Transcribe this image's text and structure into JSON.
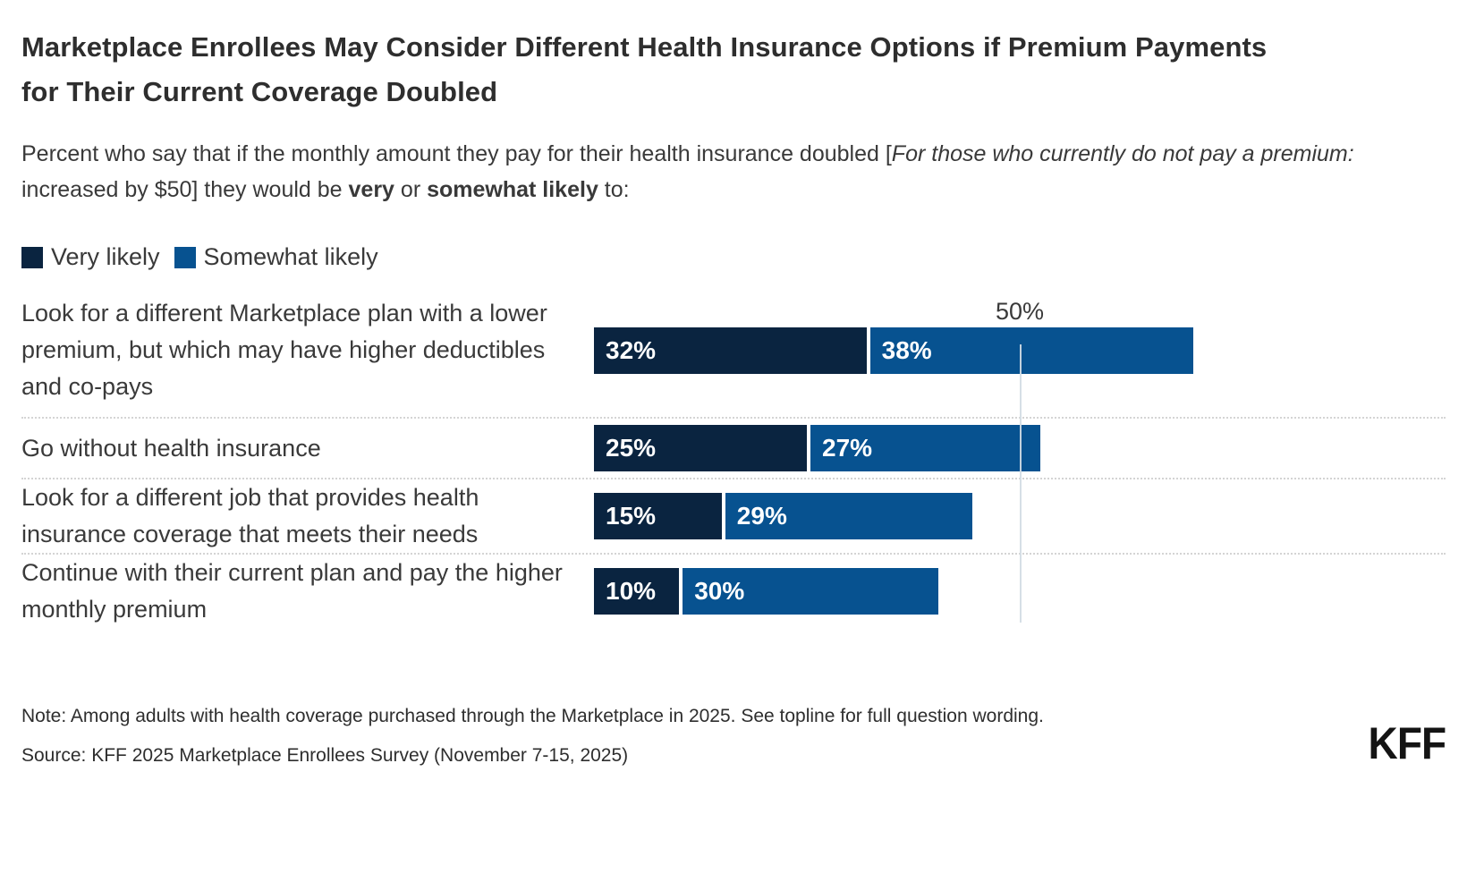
{
  "title": "Marketplace Enrollees May Consider Different Health Insurance Options if Premium Payments for Their Current Coverage Doubled",
  "subtitle": {
    "p1": "Percent who say that if the monthly amount they pay for their health insurance doubled [",
    "p2": "For those who currently do not pay a premium:",
    "p3": " increased by $50] they would be ",
    "p4": "very",
    "p5": " or ",
    "p6": "somewhat likely",
    "p7": " to:"
  },
  "chart_data": {
    "type": "bar",
    "orientation": "horizontal-stacked",
    "title": "Marketplace Enrollees May Consider Different Health Insurance Options if Premium Payments for Their Current Coverage Doubled",
    "categories": [
      "Look for a different Marketplace plan with a lower premium, but which may have higher deductibles and co-pays",
      "Go without health insurance",
      "Look for a different job that provides health insurance coverage that meets their needs",
      "Continue with their current plan and pay the higher monthly premium"
    ],
    "series": [
      {
        "name": "Very likely",
        "color": "#0a2440",
        "values": [
          32,
          25,
          15,
          10
        ]
      },
      {
        "name": "Somewhat likely",
        "color": "#075290",
        "values": [
          38,
          27,
          29,
          30
        ]
      }
    ],
    "value_suffix": "%",
    "axis": {
      "xlim": [
        0,
        100
      ],
      "gridline_at": 50,
      "tick_label": "50%"
    },
    "grid": "single vertical gridline at 50%",
    "legend_position": "top-left"
  },
  "footer": {
    "note": "Note: Among adults with health coverage purchased through the Marketplace in 2025. See topline for full question wording.",
    "source": "Source: KFF 2025 Marketplace Enrollees Survey (November 7-15, 2025)",
    "logo": "KFF"
  }
}
